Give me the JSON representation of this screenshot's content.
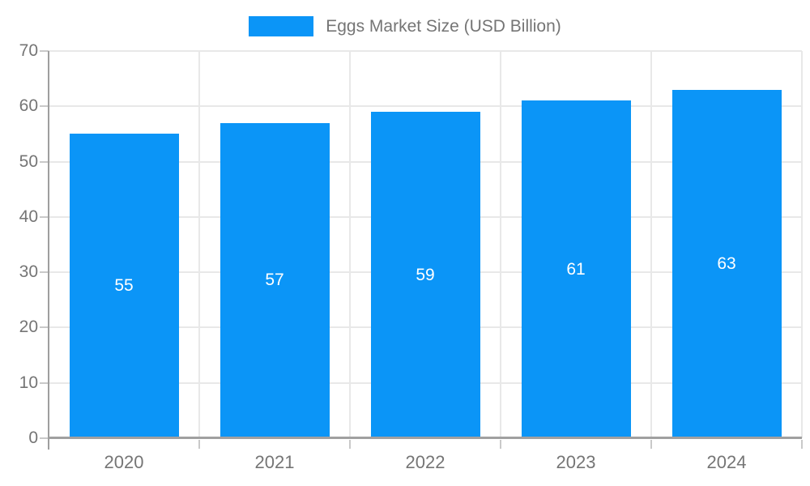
{
  "chart_data": {
    "type": "bar",
    "title": "Eggs Market Size (USD Billion)",
    "legend": {
      "label": "Eggs Market Size (USD Billion)",
      "position": "top"
    },
    "categories": [
      "2020",
      "2021",
      "2022",
      "2023",
      "2024"
    ],
    "values": [
      55,
      57,
      59,
      61,
      63
    ],
    "value_labels": [
      "55",
      "57",
      "59",
      "61",
      "63"
    ],
    "xlabel": "",
    "ylabel": "",
    "ylim": [
      0,
      70
    ],
    "y_ticks": [
      0,
      10,
      20,
      30,
      40,
      50,
      60,
      70
    ],
    "grid": true,
    "colors": {
      "bar": "#0b95f7",
      "value_label_text": "#ffffff",
      "axis_text": "#757575",
      "gridline": "#e8e8e8",
      "axis_line": "#9e9e9e"
    }
  }
}
